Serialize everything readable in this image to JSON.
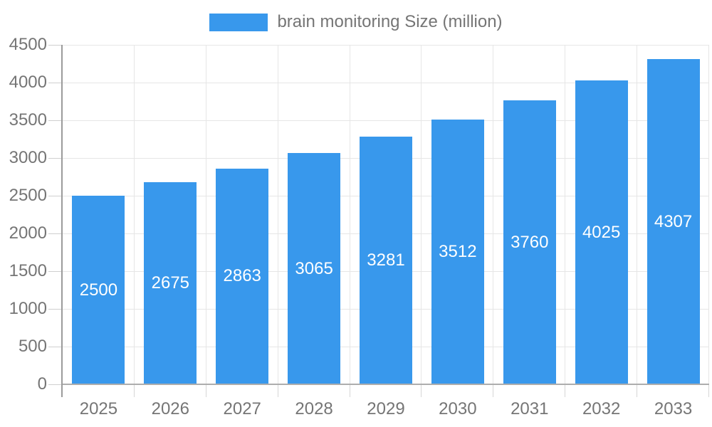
{
  "legend": {
    "label": "brain monitoring Size (million)"
  },
  "colors": {
    "bar": "#3898EC",
    "bar_label": "#FFFFFF",
    "grid": "#E6E6E6",
    "y_tick_mark": "#CFCFCF",
    "x_tick_mark": "#D6D6D6",
    "axis_x": "#ADADAD",
    "axis_y": "#9B9B9B",
    "tick_text": "#757575"
  },
  "chart_data": {
    "type": "bar",
    "title": "brain monitoring Size (million)",
    "categories": [
      "2025",
      "2026",
      "2027",
      "2028",
      "2029",
      "2030",
      "2031",
      "2032",
      "2033"
    ],
    "values": [
      2500,
      2675,
      2863,
      3065,
      3281,
      3512,
      3760,
      4025,
      4307
    ],
    "series": [
      {
        "name": "brain monitoring Size (million)",
        "values": [
          2500,
          2675,
          2863,
          3065,
          3281,
          3512,
          3760,
          4025,
          4307
        ]
      }
    ],
    "xlabel": "",
    "ylabel": "",
    "ylim": [
      0,
      4500
    ],
    "yticks": [
      0,
      500,
      1000,
      1500,
      2000,
      2500,
      3000,
      3500,
      4000,
      4500
    ],
    "grid": true,
    "legend_position": "top",
    "bar_labels_visible": true,
    "bar_label_position": "center"
  }
}
